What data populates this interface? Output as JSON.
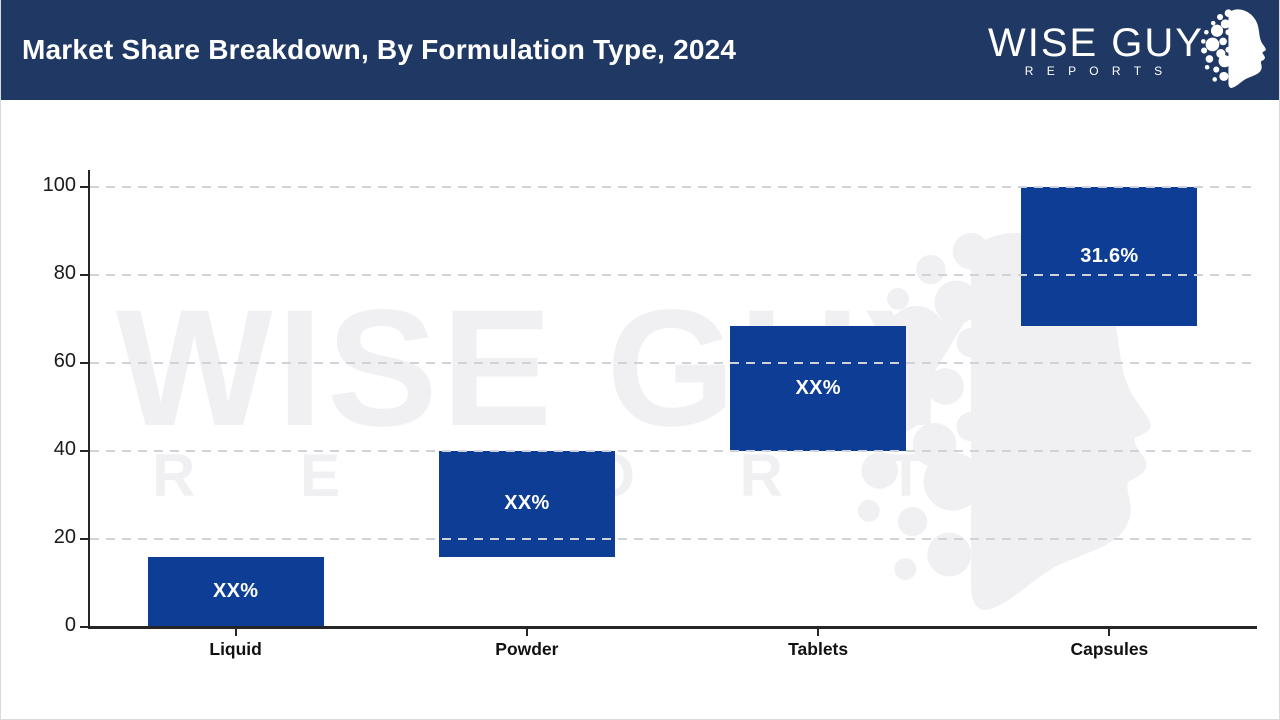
{
  "header": {
    "title": "Market Share Breakdown, By Formulation Type, 2024",
    "logo": {
      "line1": "WISE GUY",
      "line2": "R E P O R T S"
    }
  },
  "watermark": {
    "line1": "WISE GUY",
    "line2": "R E P O R T S"
  },
  "chart_data": {
    "type": "bar",
    "subtype": "waterfall",
    "title": "Market Share Breakdown, By Formulation Type, 2024",
    "categories": [
      "Liquid",
      "Powder",
      "Tablets",
      "Capsules"
    ],
    "segments": [
      {
        "category": "Liquid",
        "start": 0,
        "end": 16,
        "value_pct": 16,
        "label": "XX%"
      },
      {
        "category": "Powder",
        "start": 16,
        "end": 40,
        "value_pct": 24,
        "label": "XX%"
      },
      {
        "category": "Tablets",
        "start": 40,
        "end": 68.4,
        "value_pct": 28.4,
        "label": "XX%"
      },
      {
        "category": "Capsules",
        "start": 68.4,
        "end": 100,
        "value_pct": 31.6,
        "label": "31.6%"
      }
    ],
    "y_ticks": [
      0,
      20,
      40,
      60,
      80,
      100
    ],
    "ylim": [
      0,
      105
    ],
    "xlabel": "",
    "ylabel": "",
    "grid": "dashed-horizontal-over-bars",
    "legend": "none"
  },
  "colors": {
    "header_bg": "#1F3864",
    "bar": "#0D3D94",
    "bar_label": "#FFFFFF",
    "grid": "#CFD2D6",
    "axis": "#262626",
    "tick_label": "#1A1A1A",
    "watermark": "#F0F0F2",
    "logo_text": "#FFFFFF"
  }
}
